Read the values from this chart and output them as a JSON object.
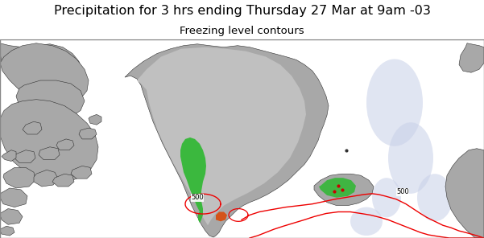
{
  "title": "Precipitation for 3 hrs ending Thursday 27 Mar at 9am -03",
  "subtitle": "Freezing level contours",
  "title_fontsize": 11.5,
  "subtitle_fontsize": 9.5,
  "background_color": "#ffffff",
  "map_bg_color": "#dde4f5",
  "fig_width": 6.01,
  "fig_height": 2.96,
  "dpi": 100,
  "land_color": "#a8a8a8",
  "land_edge": "#303030",
  "ice_color": "#c0c0c0",
  "precip_green": "#2db830",
  "precip_orange": "#cc4400",
  "contour_red": "#ee0000",
  "lavender_sea": "#c8d0e8"
}
